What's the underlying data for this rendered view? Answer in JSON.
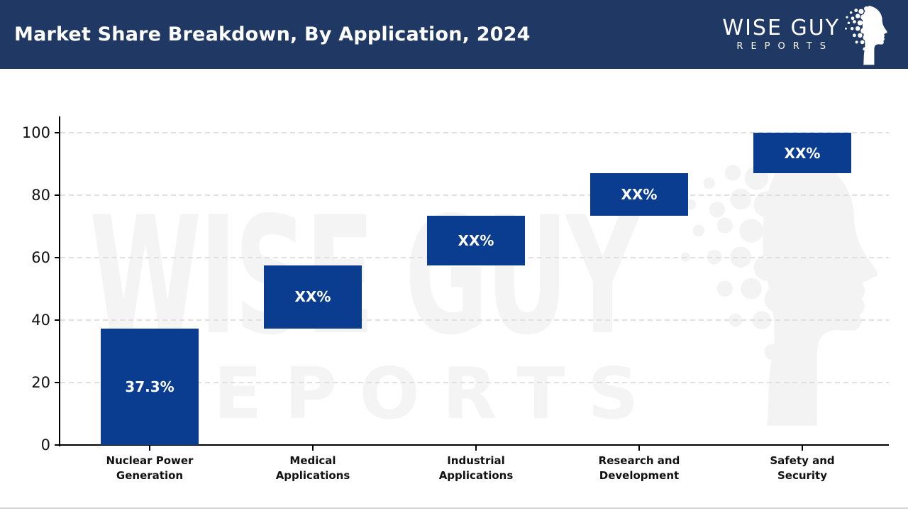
{
  "header": {
    "title": "Market Share Breakdown, By Application, 2024",
    "logo": {
      "wordmark": "WISE GUY",
      "subtext": "REPORTS"
    }
  },
  "watermark": {
    "word": "WISE GUY",
    "sub": "REPORTS"
  },
  "chart_data": {
    "type": "bar",
    "subtype": "waterfall",
    "title": "Market Share Breakdown, By Application, 2024",
    "xlabel": "",
    "ylabel": "",
    "categories": [
      [
        "Nuclear Power",
        "Generation"
      ],
      [
        "Medical",
        "Applications"
      ],
      [
        "Industrial",
        "Applications"
      ],
      [
        "Research and",
        "Development"
      ],
      [
        "Safety and",
        "Security"
      ]
    ],
    "segments": [
      {
        "category": "Nuclear Power Generation",
        "start": 0,
        "end": 37.3,
        "value_label": "37.3%"
      },
      {
        "category": "Medical Applications",
        "start": 37.3,
        "end": 57.6,
        "value_label": "XX%"
      },
      {
        "category": "Industrial Applications",
        "start": 57.6,
        "end": 73.5,
        "value_label": "XX%"
      },
      {
        "category": "Research and Development",
        "start": 73.5,
        "end": 87.0,
        "value_label": "XX%"
      },
      {
        "category": "Safety and Security",
        "start": 87.0,
        "end": 100.0,
        "value_label": "XX%"
      }
    ],
    "y_ticks": [
      0,
      20,
      40,
      60,
      80,
      100
    ],
    "ylim": [
      0,
      105.3
    ],
    "grid": "horizontal-dashed",
    "legend": "none",
    "colors": {
      "bar": "#0a3d90",
      "bar_label": "#ffffff",
      "grid": "#e0e0e0",
      "axis": "#000000",
      "header_bg": "#1f3864",
      "watermark": "#f4f4f4"
    }
  }
}
